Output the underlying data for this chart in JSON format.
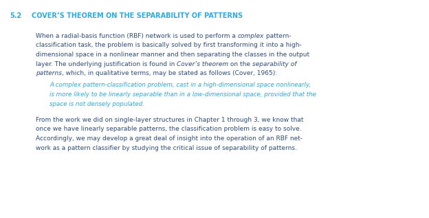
{
  "background_color": "#ffffff",
  "section_number": "5.2",
  "section_title": "COVER’S THEOREM ON THE SEPARABILITY OF PATTERNS",
  "section_color": "#29abe2",
  "body_color": "#2d4a7a",
  "font_size_title": 7.0,
  "font_size_body": 6.5,
  "font_size_quote": 6.3,
  "p1_lines": [
    [
      [
        "When a radial-basis function (RBF) network is used to perform a ",
        false
      ],
      [
        "complex",
        true
      ],
      [
        " pattern-",
        false
      ]
    ],
    [
      [
        "classification task, the problem is basically solved by first transforming it into a high-",
        false
      ]
    ],
    [
      [
        "dimensional space in a nonlinear manner and then separating the classes in the output",
        false
      ]
    ],
    [
      [
        "layer. The underlying justification is found in ",
        false
      ],
      [
        "Cover’s theorem",
        true
      ],
      [
        " on the ",
        false
      ],
      [
        "separability of",
        true
      ]
    ],
    [
      [
        "patterns",
        true
      ],
      [
        ", which, in qualitative terms, may be stated as follows (Cover, 1965):",
        false
      ]
    ]
  ],
  "quote_lines": [
    "A complex pattern-classification problem, cast in a high-dimensional space nonlinearly,",
    "is more likely to be linearly separable than in a low-dimensional space, provided that the",
    "space is not densely populated."
  ],
  "p2_lines": [
    "From the work we did on single-layer structures in Chapter 1 through 3, we know that",
    "once we have linearly separable patterns, the classification problem is easy to solve.",
    "Accordingly, we may develop a great deal of insight into the operation of an RBF net-",
    "work as a pattern classifier by studying the critical issue of separability of patterns."
  ]
}
